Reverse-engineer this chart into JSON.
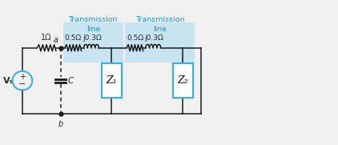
{
  "bg_color": "#f0f0f0",
  "wire_color": "#1a1a1a",
  "highlight_color": "#b8dff0",
  "box_color": "#3db0e0",
  "text_color_blue": "#3090c0",
  "text_color_dark": "#2a2a2a",
  "label_1ohm": "1Ω",
  "label_a": "a",
  "label_b": "b",
  "label_C": "C",
  "label_Vs": "Vₛ",
  "label_Z1": "Z₁",
  "label_Z2": "Z₂",
  "label_R1": "0.5Ω",
  "label_jX1": "j0.3Ω",
  "label_R2": "0.5Ω",
  "label_jX2": "j0.3Ω",
  "trans_line1": "Transmission\nline",
  "trans_line2": "Transmission\nline",
  "figsize": [
    4.22,
    1.81
  ],
  "dpi": 100,
  "xlim": [
    0,
    8.5
  ],
  "ylim": [
    0,
    3.8
  ]
}
